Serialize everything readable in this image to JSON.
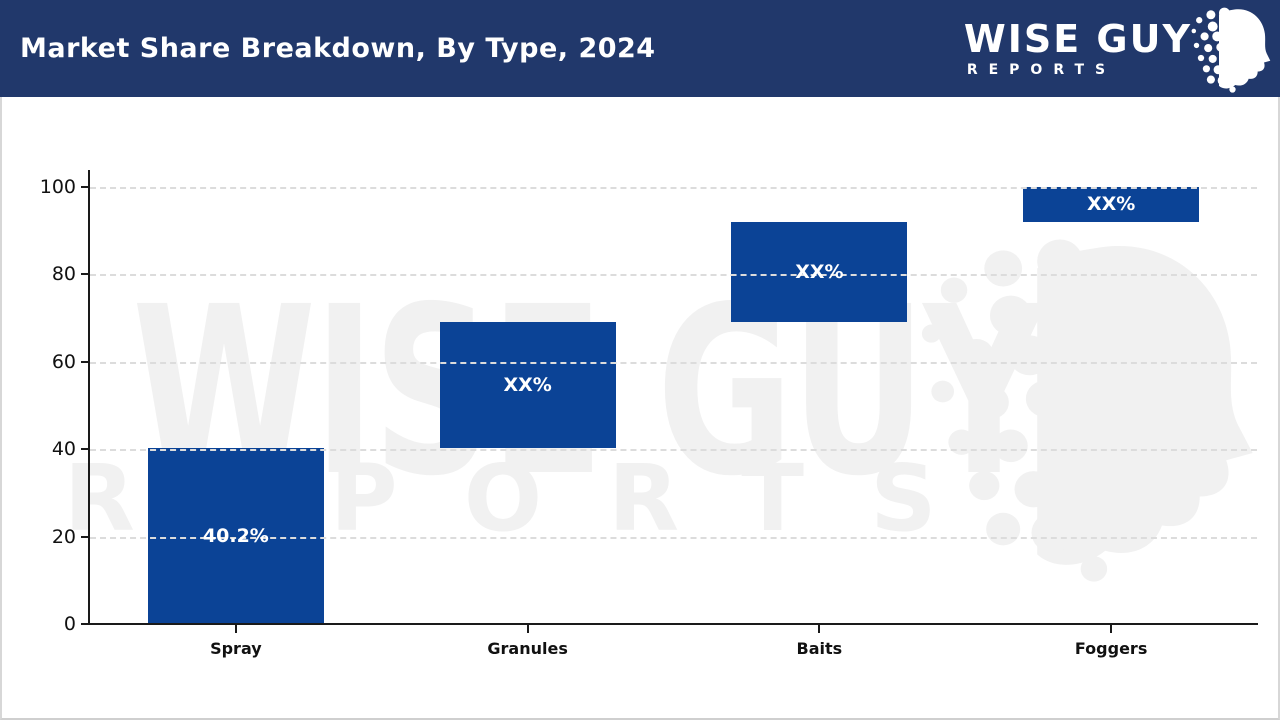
{
  "header": {
    "title": "Market Share Breakdown, By Type, 2024",
    "logo": {
      "line1": "WISE GUY",
      "line2": "REPORTS"
    }
  },
  "watermark": {
    "line1": "WISE GUY",
    "line2": "REPORTS"
  },
  "colors": {
    "header_bg": "#21386b",
    "bar": "#0b4396",
    "bar_label": "#ffffff",
    "gridline": "#dcdcdc",
    "axis": "#1a1a1a",
    "watermark": "#f1f1f1"
  },
  "chart_data": {
    "type": "bar",
    "subtype": "waterfall",
    "title": "Market Share Breakdown, By Type, 2024",
    "categories": [
      "Spray",
      "Granules",
      "Baits",
      "Foggers"
    ],
    "segments": [
      {
        "category": "Spray",
        "start": 0,
        "end": 40.2,
        "label": "40.2%"
      },
      {
        "category": "Granules",
        "start": 40.2,
        "end": 69,
        "label": "XX%"
      },
      {
        "category": "Baits",
        "start": 69,
        "end": 92,
        "label": "XX%"
      },
      {
        "category": "Foggers",
        "start": 92,
        "end": 100,
        "label": "XX%"
      }
    ],
    "xlabel": "",
    "ylabel": "",
    "ylim": [
      0,
      100
    ],
    "yticks": [
      0,
      20,
      40,
      60,
      80,
      100
    ],
    "grid": "horizontal-dashed",
    "legend": "none",
    "bar_color": "#0b4396",
    "value_label_color": "#ffffff"
  }
}
